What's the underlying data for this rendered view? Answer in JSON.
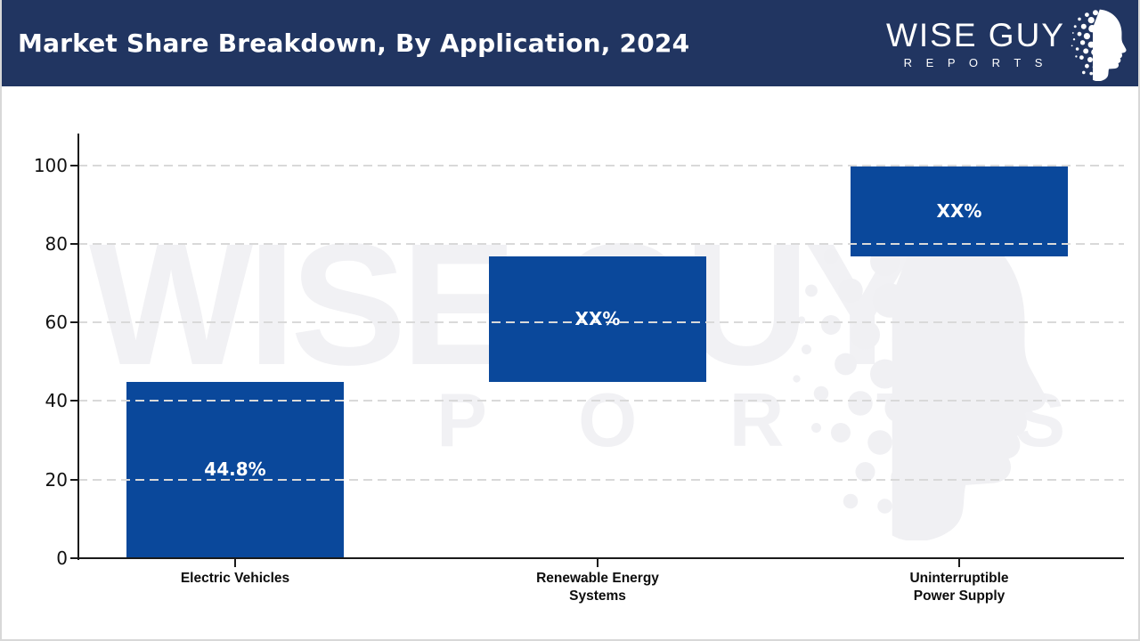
{
  "header": {
    "title": "Market Share Breakdown, By Application, 2024",
    "bg_color": "#213561",
    "logo": {
      "wordmark": "WISE GUY",
      "subtext": "R E P O R T S",
      "icon": "dotted-head-profile-icon"
    }
  },
  "watermark": {
    "wordmark": "WISE GUY",
    "subtext": "R E P O R T S",
    "icon": "dotted-head-profile-icon"
  },
  "chart_data": {
    "type": "bar",
    "subtype": "floating-segment-waterfall",
    "title": "Market Share Breakdown, By Application, 2024",
    "categories": [
      "Electric Vehicles",
      "Renewable Energy Systems",
      "Uninterruptible Power Supply"
    ],
    "category_label_lines": [
      [
        "Electric Vehicles"
      ],
      [
        "Renewable Energy",
        "Systems"
      ],
      [
        "Uninterruptible",
        "Power Supply"
      ]
    ],
    "bar_labels": [
      "44.8%",
      "XX%",
      "XX%"
    ],
    "bar_ranges": [
      [
        0,
        44.8
      ],
      [
        44.8,
        76.8
      ],
      [
        76.8,
        99.6
      ]
    ],
    "segment_values": [
      44.8,
      32.0,
      22.8
    ],
    "y_ticks": [
      0,
      20,
      40,
      60,
      80,
      100
    ],
    "ylim": [
      0,
      107
    ],
    "xlabel": "",
    "ylabel": "",
    "grid": "horizontal-dashed",
    "gridline_color": "#d9d9d9",
    "bar_color": "#0a489b",
    "bar_label_color": "#ffffff",
    "axis_color": "#1a1a1a",
    "legend": "none"
  }
}
